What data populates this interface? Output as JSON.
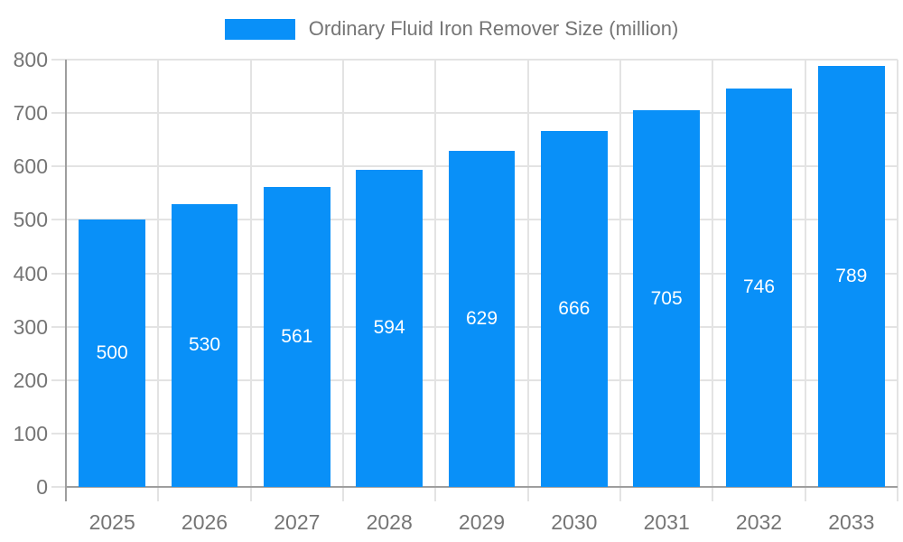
{
  "chart_data": {
    "type": "bar",
    "title": "Ordinary Fluid Iron Remover Size (million)",
    "legend_label": "Ordinary Fluid Iron Remover Size (million)",
    "legend_position": "top",
    "categories": [
      "2025",
      "2026",
      "2027",
      "2028",
      "2029",
      "2030",
      "2031",
      "2032",
      "2033"
    ],
    "series": [
      {
        "name": "Ordinary Fluid Iron Remover Size (million)",
        "values": [
          500,
          530,
          561,
          594,
          629,
          666,
          705,
          746,
          789
        ]
      }
    ],
    "value_labels": [
      "500",
      "530",
      "561",
      "594",
      "629",
      "666",
      "705",
      "746",
      "789"
    ],
    "xlabel": "",
    "ylabel": "",
    "ylim": [
      0,
      800
    ],
    "y_ticks": [
      0,
      100,
      200,
      300,
      400,
      500,
      600,
      700,
      800
    ],
    "grid": true,
    "colors": {
      "bar": "#0990f8",
      "bar_label": "#ffffff",
      "grid_line": "#e3e3e3",
      "axis_line": "#9e9e9e",
      "tick_label": "#757575",
      "legend_text": "#757575",
      "background": "#ffffff"
    }
  }
}
